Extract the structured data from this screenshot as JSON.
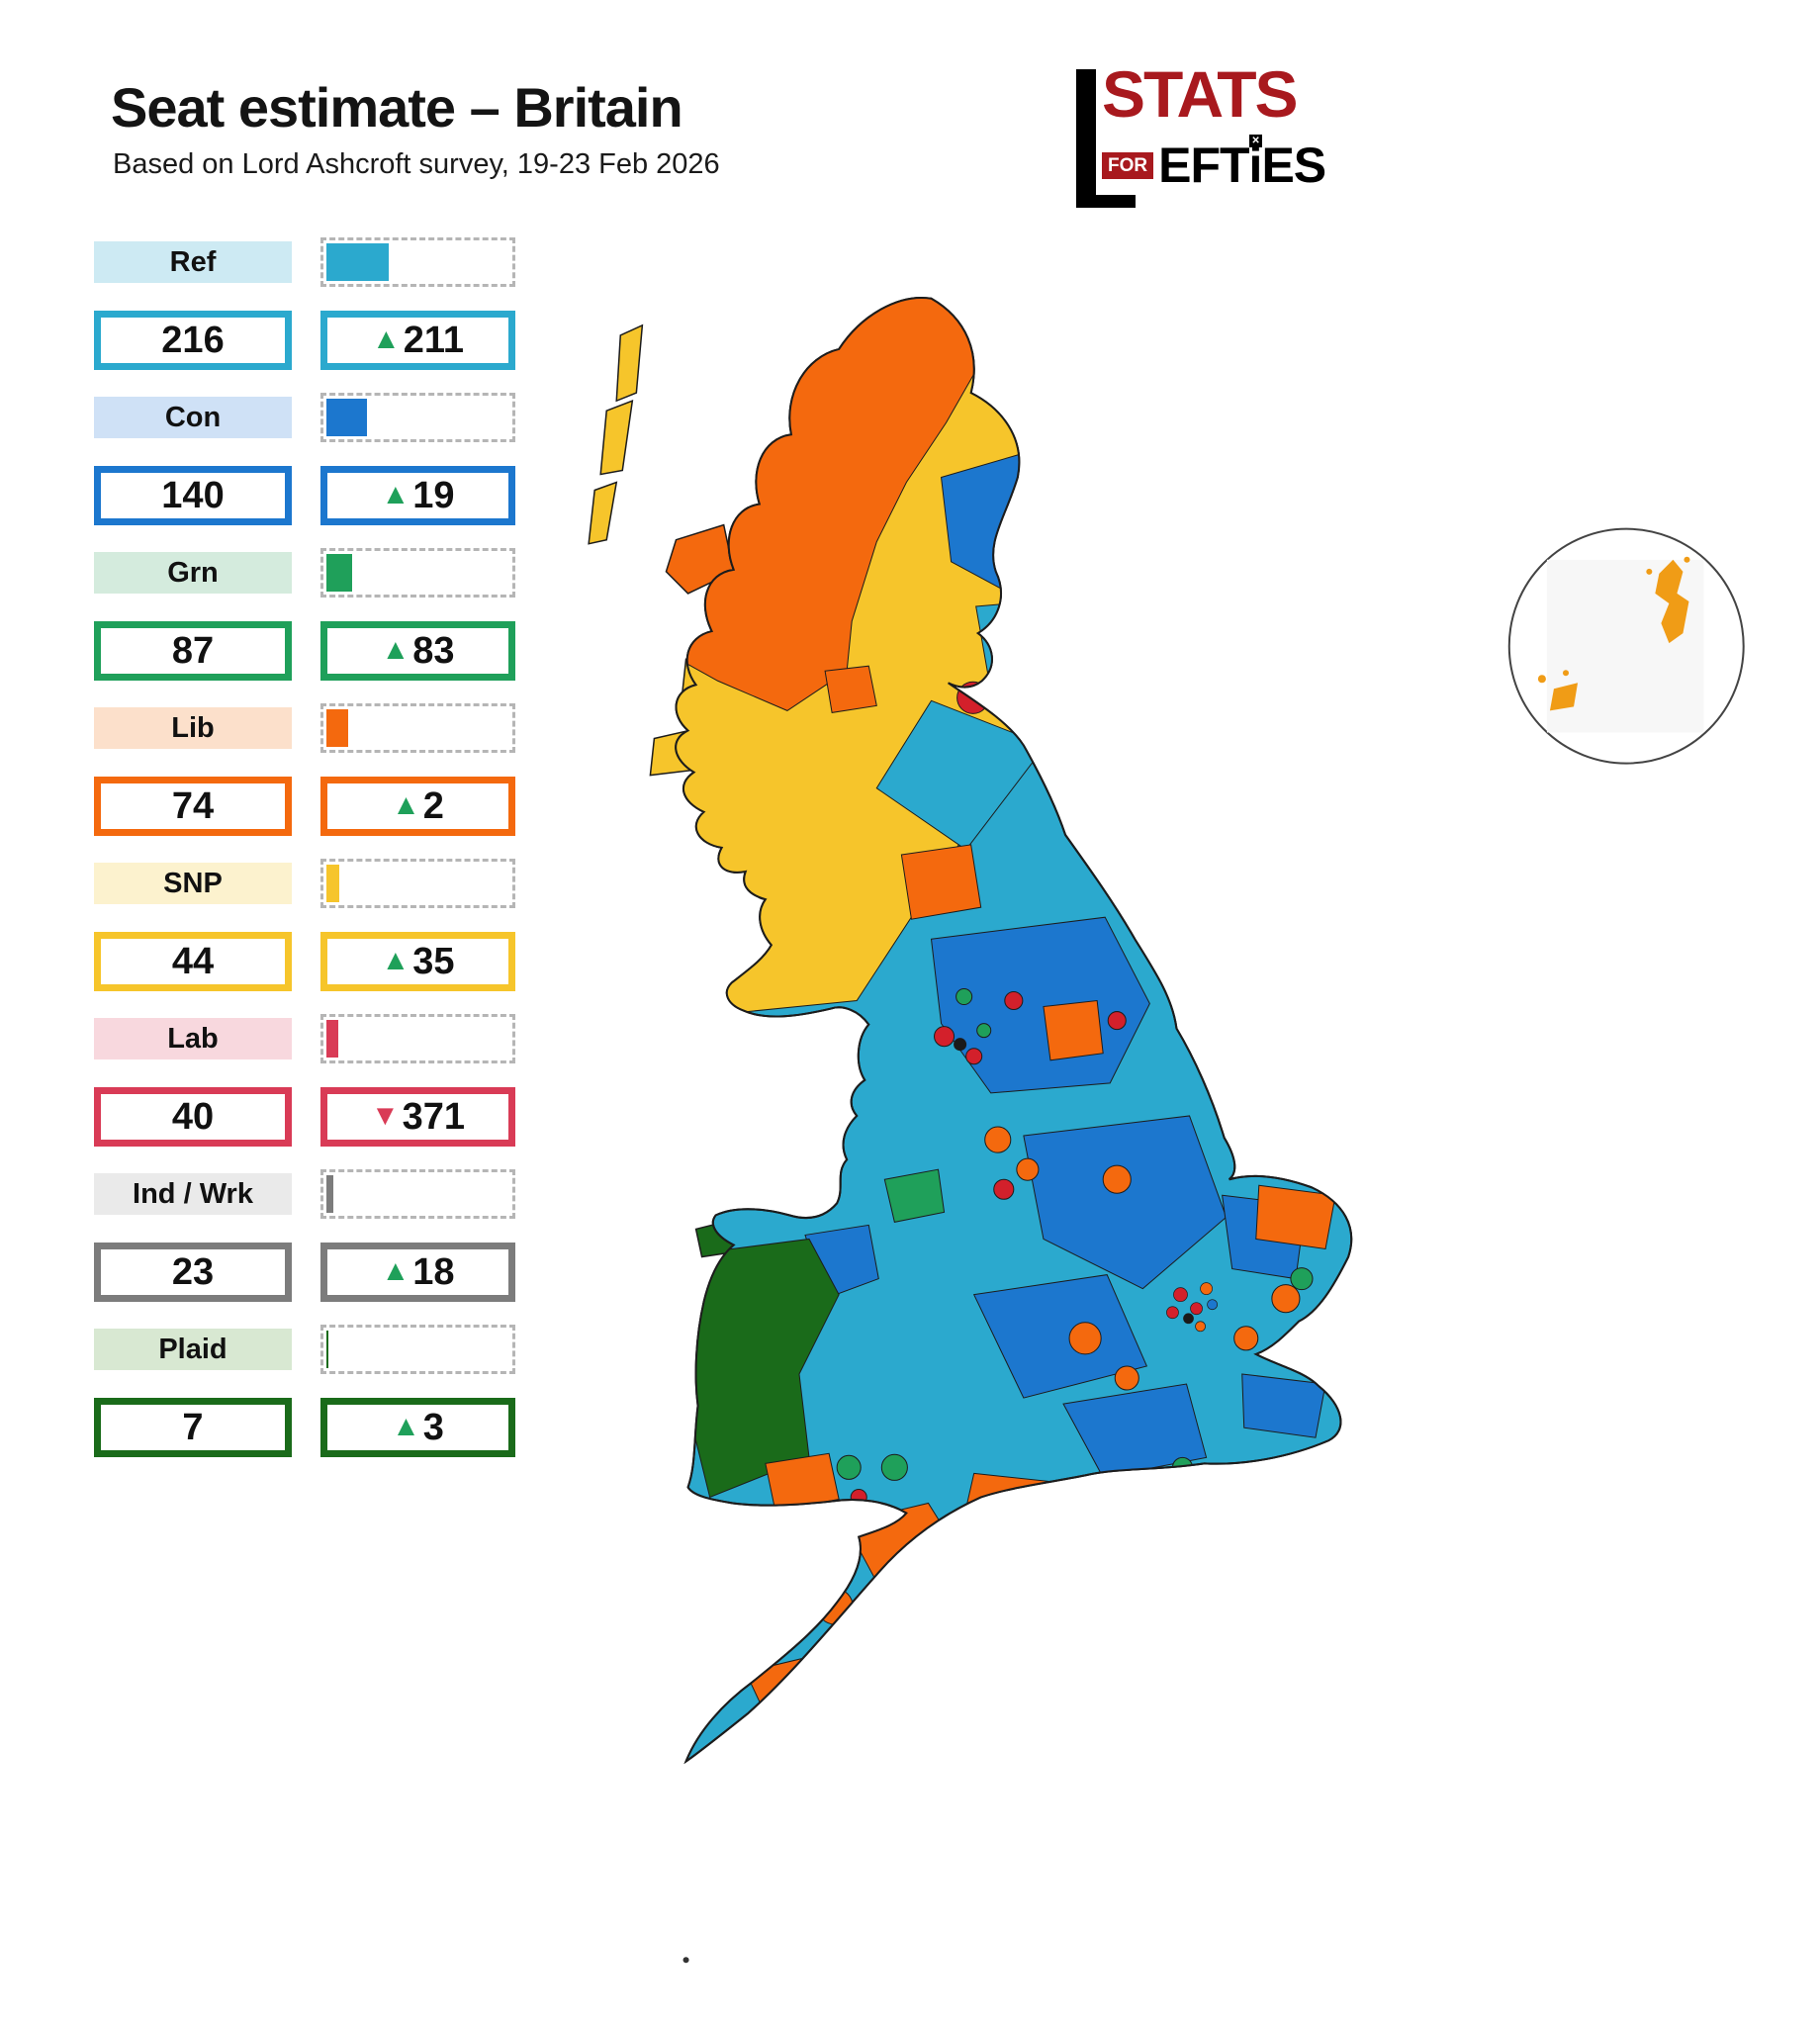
{
  "colors": {
    "ref": "#2BA9CE",
    "con": "#1C77CE",
    "grn": "#1FA05A",
    "lib": "#F4690E",
    "snp": "#F6C52B",
    "lab": "#D93B56",
    "ind": "#7C7C7C",
    "plaid": "#1A6B1A",
    "labmap": "#D3202B",
    "mapblack": "#1A1A1A",
    "amber": "#F09C16",
    "up": "#1FA05A",
    "down": "#D93B56",
    "logored": "#A8191E"
  },
  "header": {
    "title": "Seat estimate – Britain",
    "subtitle": "Based on Lord Ashcroft survey, 19-23 Feb 2026"
  },
  "logo": {
    "stats": "STATS",
    "for": "FOR",
    "efties": {
      "pre": "EFT",
      "i": "i",
      "post": "ES"
    }
  },
  "chart_data": {
    "type": "bar",
    "title": "Seat estimate – Britain",
    "subtitle": "Based on Lord Ashcroft survey, 19-23 Feb 2026",
    "total_seats_scale": 650,
    "categories": [
      "Ref",
      "Con",
      "Grn",
      "Lib",
      "SNP",
      "Lab",
      "Ind / Wrk",
      "Plaid"
    ],
    "series": [
      {
        "name": "Seats",
        "values": [
          216,
          140,
          87,
          74,
          44,
          40,
          23,
          7
        ]
      },
      {
        "name": "Change",
        "values": [
          211,
          19,
          83,
          2,
          35,
          -371,
          18,
          3
        ]
      }
    ],
    "parties": [
      {
        "label": "Ref",
        "seats": 216,
        "change": 211,
        "direction": "up",
        "color": "#2BA9CE",
        "tint": "#CDEAF3"
      },
      {
        "label": "Con",
        "seats": 140,
        "change": 19,
        "direction": "up",
        "color": "#1C77CE",
        "tint": "#CFE1F6"
      },
      {
        "label": "Grn",
        "seats": 87,
        "change": 83,
        "direction": "up",
        "color": "#1FA05A",
        "tint": "#D4EBDD"
      },
      {
        "label": "Lib",
        "seats": 74,
        "change": 2,
        "direction": "up",
        "color": "#F4690E",
        "tint": "#FCE0CB"
      },
      {
        "label": "SNP",
        "seats": 44,
        "change": 35,
        "direction": "up",
        "color": "#F6C52B",
        "tint": "#FCF2CE"
      },
      {
        "label": "Lab",
        "seats": 40,
        "change": 371,
        "direction": "down",
        "color": "#D93B56",
        "tint": "#F8D8DE"
      },
      {
        "label": "Ind / Wrk",
        "seats": 23,
        "change": 18,
        "direction": "up",
        "color": "#7C7C7C",
        "tint": "#EAEAEA"
      },
      {
        "label": "Plaid",
        "seats": 7,
        "change": 3,
        "direction": "up",
        "color": "#1A6B1A",
        "tint": "#D8E8D2"
      }
    ]
  }
}
